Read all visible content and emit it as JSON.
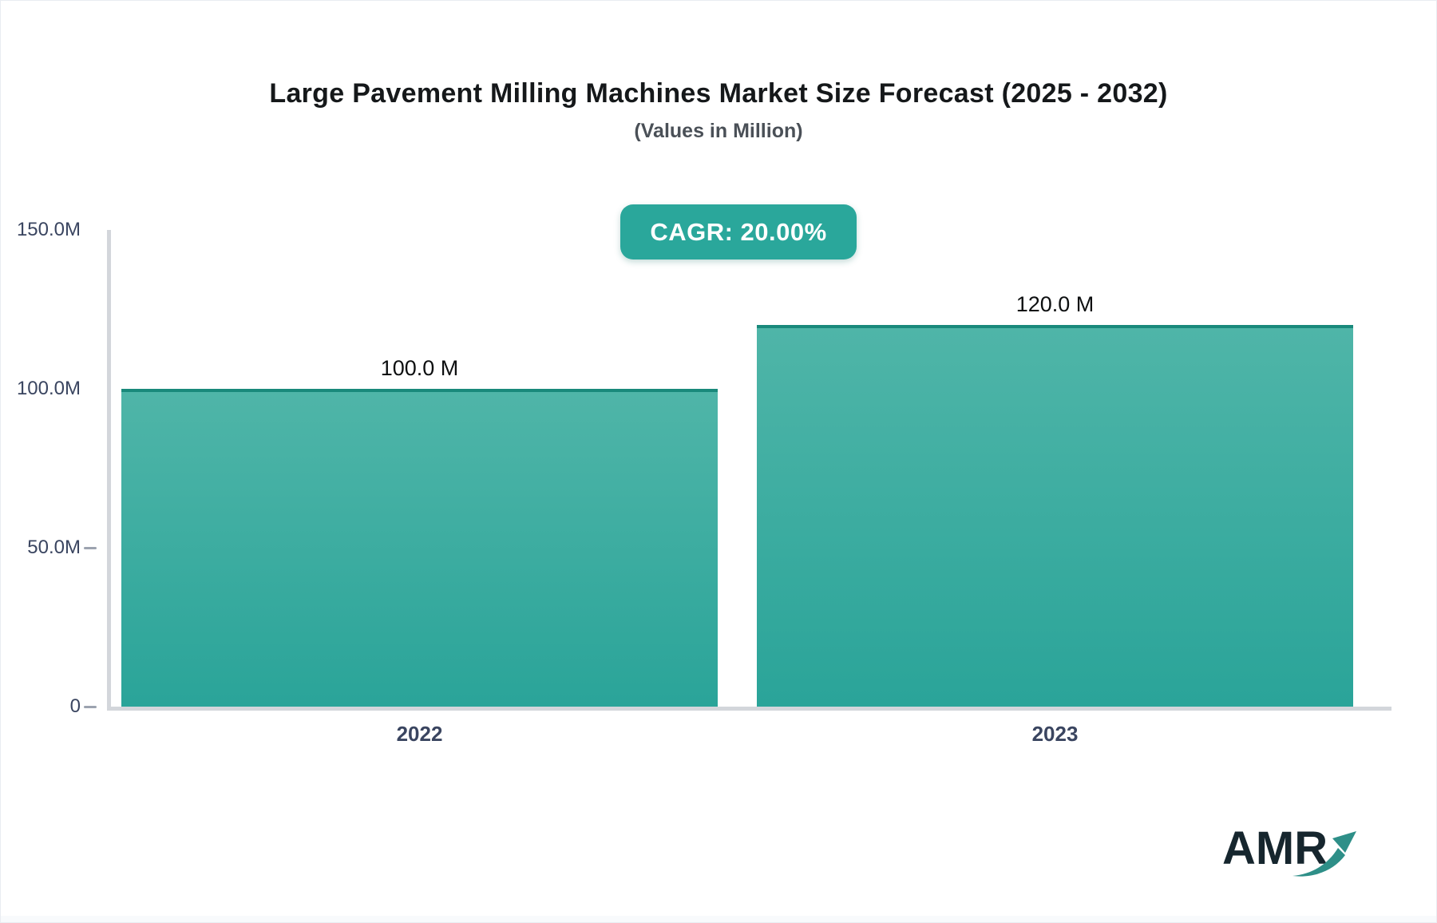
{
  "page": {
    "title": "Large Pavement Milling Machines Market Size Forecast (2025 - 2032)",
    "subtitle": "(Values in Million)",
    "cagr_label": "CAGR: 20.00%"
  },
  "chart_data": {
    "type": "bar",
    "title": "Large Pavement Milling Machines Market Size Forecast (2025 - 2032)",
    "subtitle": "(Values in Million)",
    "categories": [
      "2022",
      "2023"
    ],
    "values": [
      100.0,
      120.0
    ],
    "value_labels": [
      "100.0 M",
      "120.0 M"
    ],
    "unit": "Million",
    "ylim": [
      0,
      150
    ],
    "grid": false,
    "legend": "none",
    "y_ticks": [
      {
        "label": "150.0M",
        "value": 150,
        "tick_mark": false
      },
      {
        "label": "100.0M",
        "value": 100,
        "tick_mark": false
      },
      {
        "label": "50.0M",
        "value": 50,
        "tick_mark": true
      },
      {
        "label": "0",
        "value": 0,
        "tick_mark": true
      }
    ],
    "annotations": [
      "CAGR: 20.00%"
    ]
  },
  "colors": {
    "accent_teal": "#2aa79b",
    "bar_gradient_top": "#4fb5a8",
    "bar_gradient_bottom": "#2aa499",
    "bar_top_border": "#19897b",
    "axis_line": "#d3d6db",
    "axis_label": "#3a4560",
    "title_text": "#15181a",
    "subtitle_text": "#4a5057",
    "value_label": "#0d0f10",
    "badge_text": "#ffffff",
    "logo_text": "#16262e",
    "logo_arrow": "#2e8f88"
  },
  "logo": {
    "text": "AMR",
    "icon": "growth-arrow-icon"
  }
}
